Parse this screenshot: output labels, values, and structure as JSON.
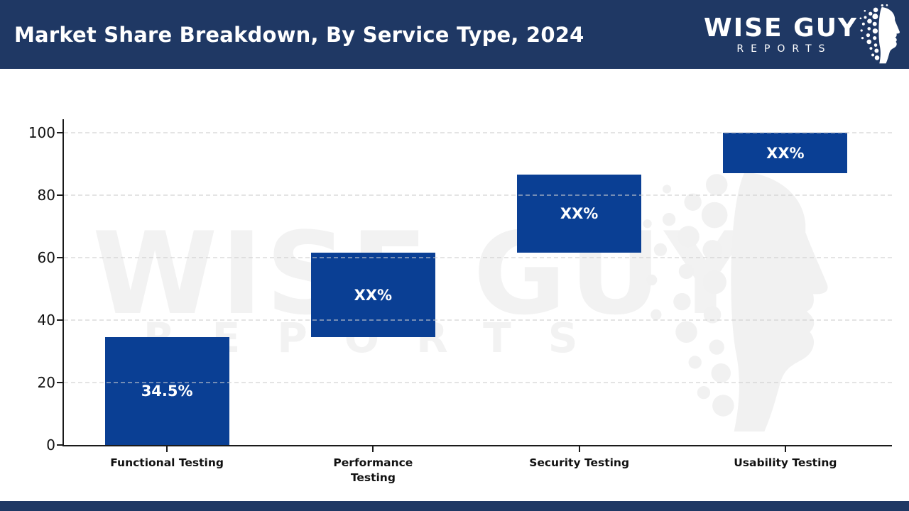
{
  "header": {
    "title": "Market Share Breakdown, By Service Type, 2024",
    "logo": {
      "line1": "WISE GUY",
      "line2": "REPORTS"
    }
  },
  "watermark": {
    "line1": "WISE GUY",
    "line2": "REPORTS"
  },
  "chart_data": {
    "type": "bar",
    "subtype": "waterfall",
    "title": "Market Share Breakdown, By Service Type, 2024",
    "categories": [
      "Functional Testing",
      "Performance Testing",
      "Security Testing",
      "Usability Testing"
    ],
    "tick_labels": [
      "Functional Testing",
      "Performance\nTesting",
      "Security Testing",
      "Usability Testing"
    ],
    "series": [
      {
        "name": "Market Share",
        "segments": [
          {
            "category": "Functional Testing",
            "start": 0,
            "end": 34.5,
            "label": "34.5%"
          },
          {
            "category": "Performance Testing",
            "start": 34.5,
            "end": 61.5,
            "label": "XX%"
          },
          {
            "category": "Security Testing",
            "start": 61.5,
            "end": 86.5,
            "label": "XX%"
          },
          {
            "category": "Usability Testing",
            "start": 87,
            "end": 100,
            "label": "XX%"
          }
        ]
      }
    ],
    "xlabel": "",
    "ylabel": "",
    "ylim": [
      0,
      100
    ],
    "yticks": [
      0,
      20,
      40,
      60,
      80,
      100
    ],
    "grid": "horizontal-dashed",
    "legend": "none",
    "bar_color": "#0a3f94",
    "bar_label_color": "#ffffff"
  },
  "colors": {
    "header_bg": "#1f3864",
    "footer_bg": "#1f3864",
    "bar": "#0a3f94",
    "axis": "#1a1a1a",
    "grid": "#d5d5d5",
    "watermark": "#f2f2f2",
    "title_text": "#ffffff",
    "tick_text": "#111111"
  }
}
